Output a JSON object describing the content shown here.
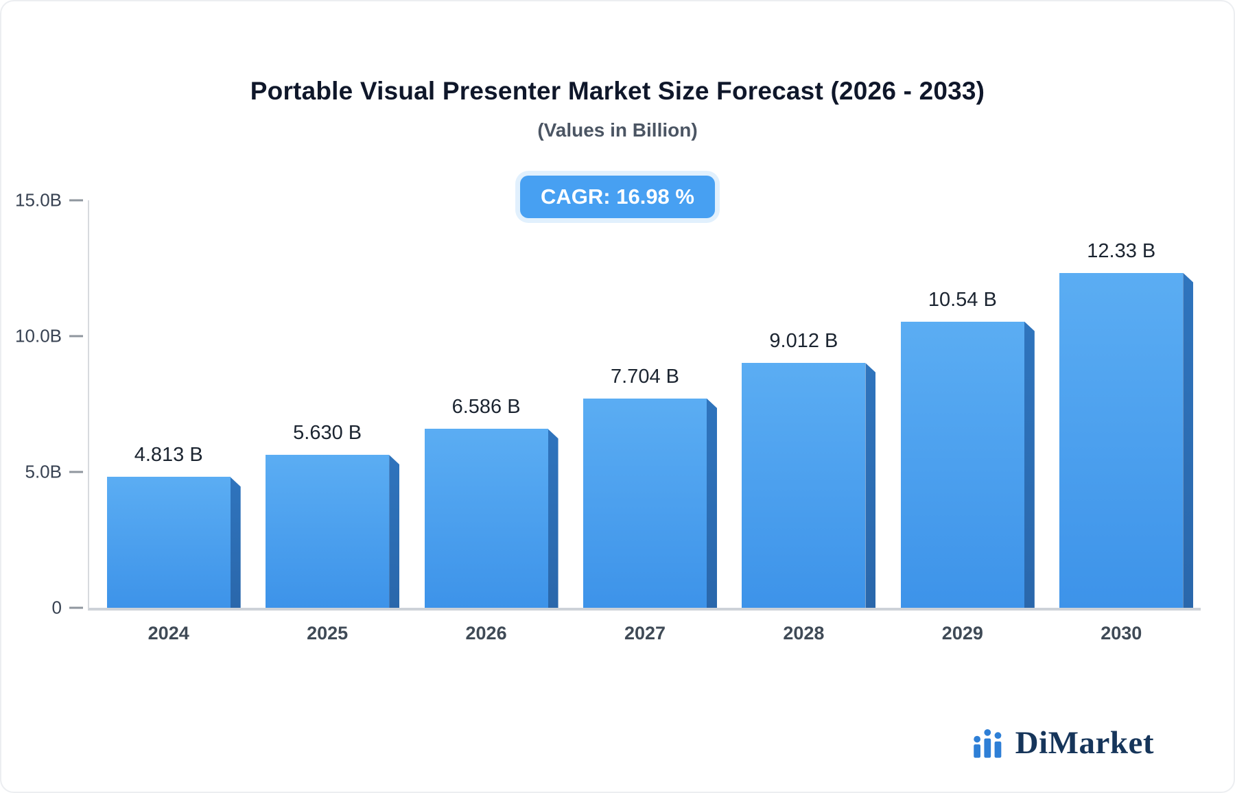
{
  "header": {
    "title": "Portable Visual Presenter Market Size Forecast (2026 - 2033)",
    "subtitle": "(Values in Billion)",
    "badge_label": "CAGR: 16.98 %"
  },
  "chart_data": {
    "type": "bar",
    "title": "Portable Visual Presenter Market Size Forecast (2026 - 2033)",
    "subtitle": "(Values in Billion)",
    "categories": [
      "2024",
      "2025",
      "2026",
      "2027",
      "2028",
      "2029",
      "2030"
    ],
    "values": [
      4.813,
      5.63,
      6.586,
      7.704,
      9.012,
      10.54,
      12.33
    ],
    "value_labels": [
      "4.813 B",
      "5.630 B",
      "6.586 B",
      "7.704 B",
      "9.012 B",
      "10.54 B",
      "12.33 B"
    ],
    "ylabel": "",
    "xlabel": "",
    "ylim": [
      0,
      15
    ],
    "yticks": [
      {
        "value": 0,
        "label": "0"
      },
      {
        "value": 5,
        "label": "5.0B"
      },
      {
        "value": 10,
        "label": "10.0B"
      },
      {
        "value": 15,
        "label": "15.0B"
      }
    ],
    "grid": false,
    "legend": "none",
    "annotations": [
      "CAGR: 16.98 %"
    ]
  },
  "logo": {
    "text": "DiMarket"
  },
  "colors": {
    "bar_top": "#5badf3",
    "bar_bottom": "#3d93e9",
    "bar_side": "#2c6fb6",
    "badge_bg": "#47a0f2",
    "accent": "#2e7fd6",
    "logo_text": "#16355a",
    "axis": "#cdd2d8"
  }
}
